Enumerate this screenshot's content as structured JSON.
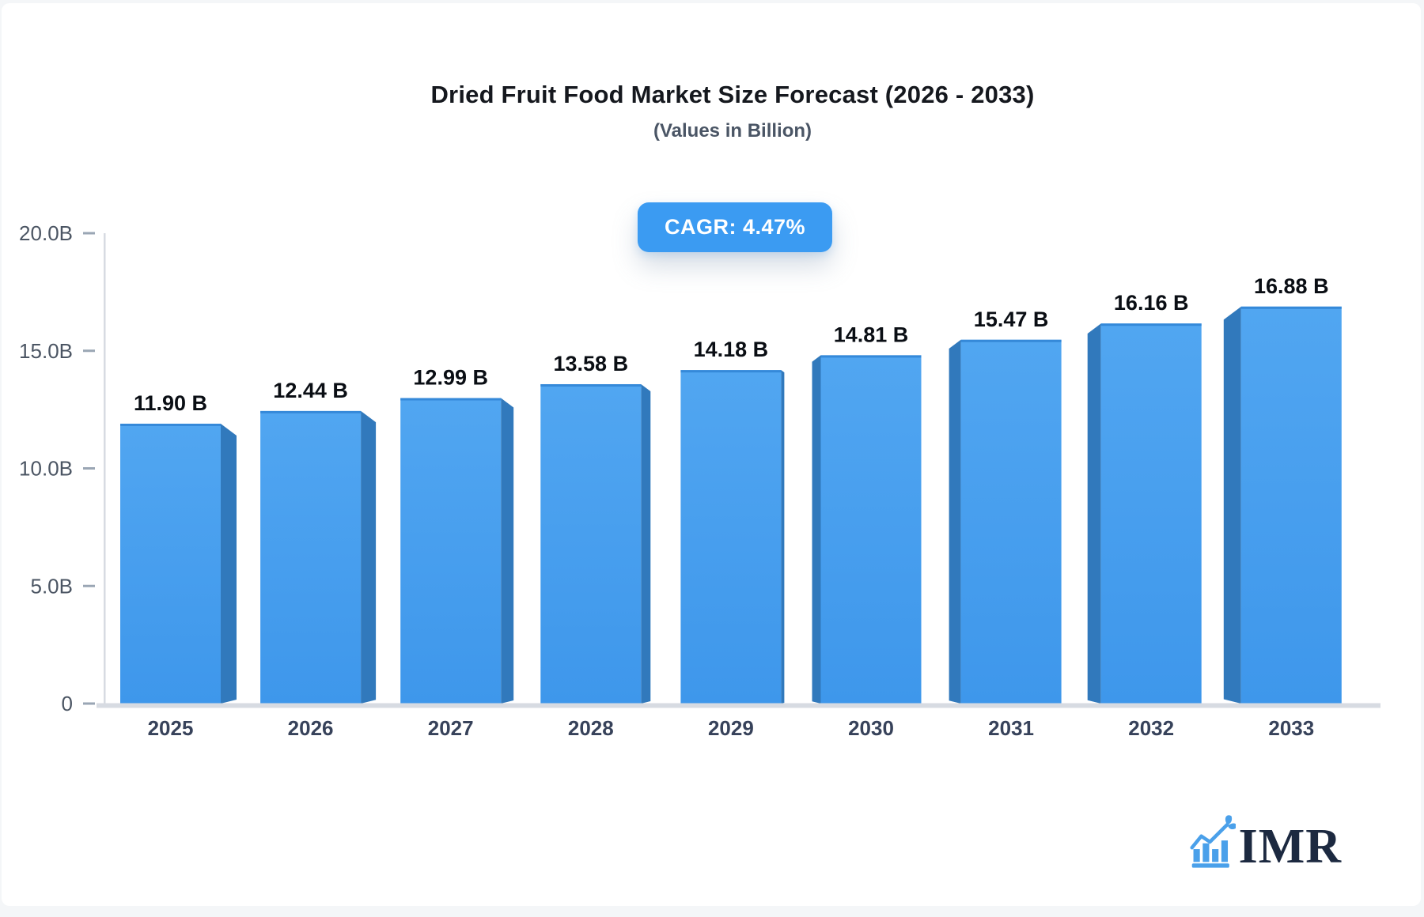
{
  "header": {
    "title": "Dried Fruit Food Market Size Forecast (2026 - 2033)",
    "subtitle": "(Values in Billion)",
    "cagr_badge": "CAGR: 4.47%"
  },
  "footer": {
    "logo_text": "IMR",
    "logo_icon": "bar-chart-leaf-icon"
  },
  "colors": {
    "badge_bg": "#3b9bf2",
    "bar_face_top": "#51a6f1",
    "bar_face_bottom": "#3e97eb",
    "bar_top_edge": "#3589d9",
    "bar_side": "#3179bc",
    "axis_line": "#d7dbe2",
    "tick_dash": "#9aa6b4",
    "y_label": "#4b5563",
    "x_label": "#37425a",
    "value_label": "#0a0e14",
    "logo_blue": "#4aa0ea",
    "logo_navy": "#1c2940"
  },
  "chart_data": {
    "type": "bar",
    "title": "Dried Fruit Food Market Size Forecast (2026 - 2033)",
    "subtitle": "(Values in Billion)",
    "annotation": "CAGR: 4.47%",
    "unit": "Billion",
    "categories": [
      "2025",
      "2026",
      "2027",
      "2028",
      "2029",
      "2030",
      "2031",
      "2032",
      "2033"
    ],
    "values": [
      11.9,
      12.44,
      12.99,
      13.58,
      14.18,
      14.81,
      15.47,
      16.16,
      16.88
    ],
    "value_labels": [
      "11.90 B",
      "12.44 B",
      "12.99 B",
      "13.58 B",
      "14.18 B",
      "14.81 B",
      "15.47 B",
      "16.16 B",
      "16.88 B"
    ],
    "ylim": [
      0,
      20
    ],
    "yticks": [
      {
        "label": "20.0B",
        "value": 20
      },
      {
        "label": "15.0B",
        "value": 15
      },
      {
        "label": "10.0B",
        "value": 10
      },
      {
        "label": "5.0B",
        "value": 5
      },
      {
        "label": "0",
        "value": 0
      }
    ],
    "grid": false,
    "legend": null,
    "bar_style": "3d-perspective"
  }
}
